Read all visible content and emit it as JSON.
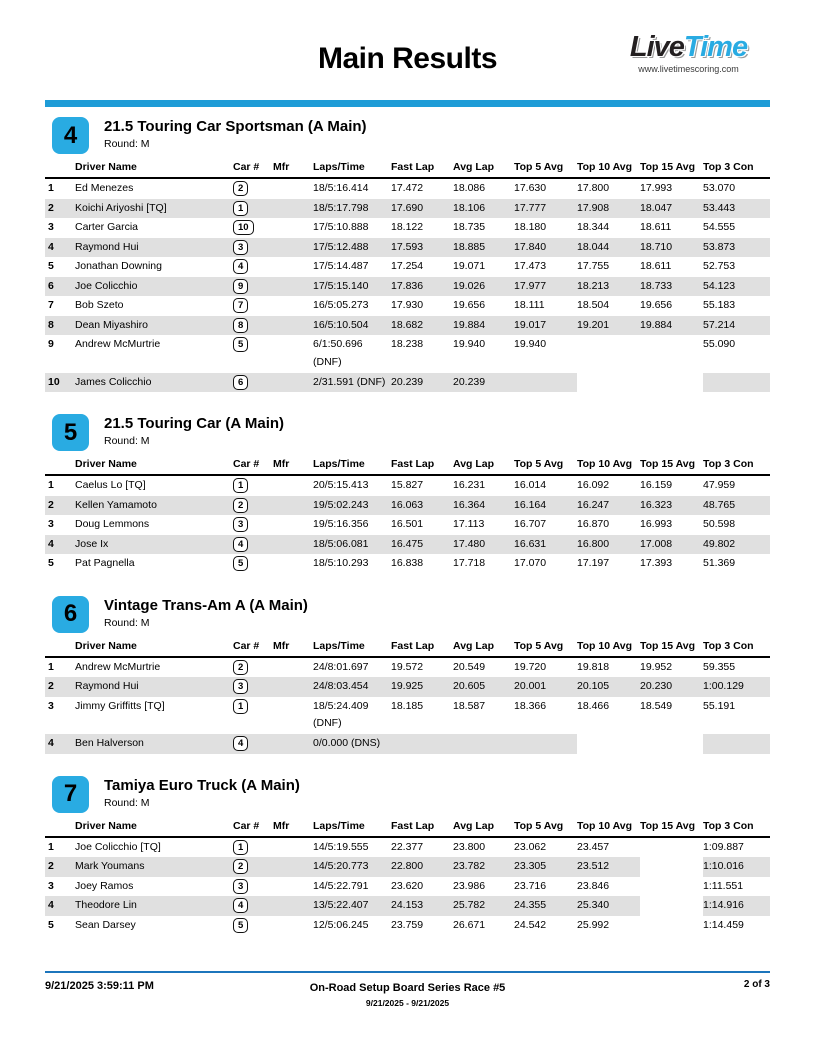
{
  "page": {
    "title": "Main Results",
    "logo": {
      "brand_live": "Live",
      "brand_time": "Time",
      "website": "www.livetimescoring.com"
    },
    "footer": {
      "datetime": "9/21/2025 3:59:11 PM",
      "series_title": "On-Road Setup Board Series Race #5",
      "date_range": "9/21/2025 - 9/21/2025",
      "page_number": "2 of 3"
    },
    "colors": {
      "accent_cyan": "#29abe2",
      "header_bar_blue": "#1e9cd7",
      "footer_line_blue": "#1c75bc",
      "row_alt_gray": "#e0e0e0"
    }
  },
  "table_columns": [
    "Driver Name",
    "Car #",
    "Mfr",
    "Laps/Time",
    "Fast Lap",
    "Avg Lap",
    "Top 5 Avg",
    "Top 10 Avg",
    "Top 15 Avg",
    "Top 3 Con"
  ],
  "sections": [
    {
      "race_number": "4",
      "title": "21.5 Touring Car Sportsman (A Main)",
      "round": "Round: M",
      "rows": [
        {
          "pos": "1",
          "driver": "Ed Menezes",
          "car": "2",
          "mfr": "",
          "laps_time": "18/5:16.414",
          "laps_time2": "",
          "fast_lap": "17.472",
          "avg_lap": "18.086",
          "top5": "17.630",
          "top10": "17.800",
          "top15": "17.993",
          "top3con": "53.070"
        },
        {
          "pos": "2",
          "driver": "Koichi Ariyoshi [TQ]",
          "car": "1",
          "mfr": "",
          "laps_time": "18/5:17.798",
          "laps_time2": "",
          "fast_lap": "17.690",
          "avg_lap": "18.106",
          "top5": "17.777",
          "top10": "17.908",
          "top15": "18.047",
          "top3con": "53.443"
        },
        {
          "pos": "3",
          "driver": "Carter Garcia",
          "car": "10",
          "mfr": "",
          "laps_time": "17/5:10.888",
          "laps_time2": "",
          "fast_lap": "18.122",
          "avg_lap": "18.735",
          "top5": "18.180",
          "top10": "18.344",
          "top15": "18.611",
          "top3con": "54.555"
        },
        {
          "pos": "4",
          "driver": "Raymond Hui",
          "car": "3",
          "mfr": "",
          "laps_time": "17/5:12.488",
          "laps_time2": "",
          "fast_lap": "17.593",
          "avg_lap": "18.885",
          "top5": "17.840",
          "top10": "18.044",
          "top15": "18.710",
          "top3con": "53.873"
        },
        {
          "pos": "5",
          "driver": "Jonathan Downing",
          "car": "4",
          "mfr": "",
          "laps_time": "17/5:14.487",
          "laps_time2": "",
          "fast_lap": "17.254",
          "avg_lap": "19.071",
          "top5": "17.473",
          "top10": "17.755",
          "top15": "18.611",
          "top3con": "52.753"
        },
        {
          "pos": "6",
          "driver": "Joe Colicchio",
          "car": "9",
          "mfr": "",
          "laps_time": "17/5:15.140",
          "laps_time2": "",
          "fast_lap": "17.836",
          "avg_lap": "19.026",
          "top5": "17.977",
          "top10": "18.213",
          "top15": "18.733",
          "top3con": "54.123"
        },
        {
          "pos": "7",
          "driver": "Bob Szeto",
          "car": "7",
          "mfr": "",
          "laps_time": "16/5:05.273",
          "laps_time2": "",
          "fast_lap": "17.930",
          "avg_lap": "19.656",
          "top5": "18.111",
          "top10": "18.504",
          "top15": "19.656",
          "top3con": "55.183"
        },
        {
          "pos": "8",
          "driver": "Dean Miyashiro",
          "car": "8",
          "mfr": "",
          "laps_time": "16/5:10.504",
          "laps_time2": "",
          "fast_lap": "18.682",
          "avg_lap": "19.884",
          "top5": "19.017",
          "top10": "19.201",
          "top15": "19.884",
          "top3con": "57.214"
        },
        {
          "pos": "9",
          "driver": "Andrew McMurtrie",
          "car": "5",
          "mfr": "",
          "laps_time": "6/1:50.696",
          "laps_time2": "(DNF)",
          "fast_lap": "18.238",
          "avg_lap": "19.940",
          "top5": "19.940",
          "top10": "",
          "top15": "",
          "top3con": "55.090"
        },
        {
          "pos": "10",
          "driver": "James Colicchio",
          "car": "6",
          "mfr": "",
          "laps_time": "2/31.591 (DNF)",
          "laps_time2": "",
          "fast_lap": "20.239",
          "avg_lap": "20.239",
          "top5": "",
          "top10": "",
          "top15": "",
          "top3con": ""
        }
      ]
    },
    {
      "race_number": "5",
      "title": "21.5 Touring Car  (A Main)",
      "round": "Round: M",
      "rows": [
        {
          "pos": "1",
          "driver": "Caelus Lo [TQ]",
          "car": "1",
          "mfr": "",
          "laps_time": "20/5:15.413",
          "laps_time2": "",
          "fast_lap": "15.827",
          "avg_lap": "16.231",
          "top5": "16.014",
          "top10": "16.092",
          "top15": "16.159",
          "top3con": "47.959"
        },
        {
          "pos": "2",
          "driver": "Kellen Yamamoto",
          "car": "2",
          "mfr": "",
          "laps_time": "19/5:02.243",
          "laps_time2": "",
          "fast_lap": "16.063",
          "avg_lap": "16.364",
          "top5": "16.164",
          "top10": "16.247",
          "top15": "16.323",
          "top3con": "48.765"
        },
        {
          "pos": "3",
          "driver": "Doug Lemmons",
          "car": "3",
          "mfr": "",
          "laps_time": "19/5:16.356",
          "laps_time2": "",
          "fast_lap": "16.501",
          "avg_lap": "17.113",
          "top5": "16.707",
          "top10": "16.870",
          "top15": "16.993",
          "top3con": "50.598"
        },
        {
          "pos": "4",
          "driver": "Jose Ix",
          "car": "4",
          "mfr": "",
          "laps_time": "18/5:06.081",
          "laps_time2": "",
          "fast_lap": "16.475",
          "avg_lap": "17.480",
          "top5": "16.631",
          "top10": "16.800",
          "top15": "17.008",
          "top3con": "49.802"
        },
        {
          "pos": "5",
          "driver": "Pat Pagnella",
          "car": "5",
          "mfr": "",
          "laps_time": "18/5:10.293",
          "laps_time2": "",
          "fast_lap": "16.838",
          "avg_lap": "17.718",
          "top5": "17.070",
          "top10": "17.197",
          "top15": "17.393",
          "top3con": "51.369"
        }
      ]
    },
    {
      "race_number": "6",
      "title": "Vintage Trans-Am A (A Main)",
      "round": "Round: M",
      "rows": [
        {
          "pos": "1",
          "driver": "Andrew McMurtrie",
          "car": "2",
          "mfr": "",
          "laps_time": "24/8:01.697",
          "laps_time2": "",
          "fast_lap": "19.572",
          "avg_lap": "20.549",
          "top5": "19.720",
          "top10": "19.818",
          "top15": "19.952",
          "top3con": "59.355"
        },
        {
          "pos": "2",
          "driver": "Raymond Hui",
          "car": "3",
          "mfr": "",
          "laps_time": "24/8:03.454",
          "laps_time2": "",
          "fast_lap": "19.925",
          "avg_lap": "20.605",
          "top5": "20.001",
          "top10": "20.105",
          "top15": "20.230",
          "top3con": "1:00.129"
        },
        {
          "pos": "3",
          "driver": "Jimmy Griffitts [TQ]",
          "car": "1",
          "mfr": "",
          "laps_time": "18/5:24.409",
          "laps_time2": "(DNF)",
          "fast_lap": "18.185",
          "avg_lap": "18.587",
          "top5": "18.366",
          "top10": "18.466",
          "top15": "18.549",
          "top3con": "55.191"
        },
        {
          "pos": "4",
          "driver": "Ben Halverson",
          "car": "4",
          "mfr": "",
          "laps_time": "0/0.000 (DNS)",
          "laps_time2": "",
          "fast_lap": "",
          "avg_lap": "",
          "top5": "",
          "top10": "",
          "top15": "",
          "top3con": ""
        }
      ]
    },
    {
      "race_number": "7",
      "title": "Tamiya Euro Truck (A Main)",
      "round": "Round: M",
      "rows": [
        {
          "pos": "1",
          "driver": "Joe Colicchio [TQ]",
          "car": "1",
          "mfr": "",
          "laps_time": "14/5:19.555",
          "laps_time2": "",
          "fast_lap": "22.377",
          "avg_lap": "23.800",
          "top5": "23.062",
          "top10": "23.457",
          "top15": "",
          "top3con": "1:09.887"
        },
        {
          "pos": "2",
          "driver": "Mark Youmans",
          "car": "2",
          "mfr": "",
          "laps_time": "14/5:20.773",
          "laps_time2": "",
          "fast_lap": "22.800",
          "avg_lap": "23.782",
          "top5": "23.305",
          "top10": "23.512",
          "top15": "",
          "top3con": "1:10.016"
        },
        {
          "pos": "3",
          "driver": "Joey Ramos",
          "car": "3",
          "mfr": "",
          "laps_time": "14/5:22.791",
          "laps_time2": "",
          "fast_lap": "23.620",
          "avg_lap": "23.986",
          "top5": "23.716",
          "top10": "23.846",
          "top15": "",
          "top3con": "1:11.551"
        },
        {
          "pos": "4",
          "driver": "Theodore Lin",
          "car": "4",
          "mfr": "",
          "laps_time": "13/5:22.407",
          "laps_time2": "",
          "fast_lap": "24.153",
          "avg_lap": "25.782",
          "top5": "24.355",
          "top10": "25.340",
          "top15": "",
          "top3con": "1:14.916"
        },
        {
          "pos": "5",
          "driver": "Sean Darsey",
          "car": "5",
          "mfr": "",
          "laps_time": "12/5:06.245",
          "laps_time2": "",
          "fast_lap": "23.759",
          "avg_lap": "26.671",
          "top5": "24.542",
          "top10": "25.992",
          "top15": "",
          "top3con": "1:14.459"
        }
      ]
    }
  ]
}
